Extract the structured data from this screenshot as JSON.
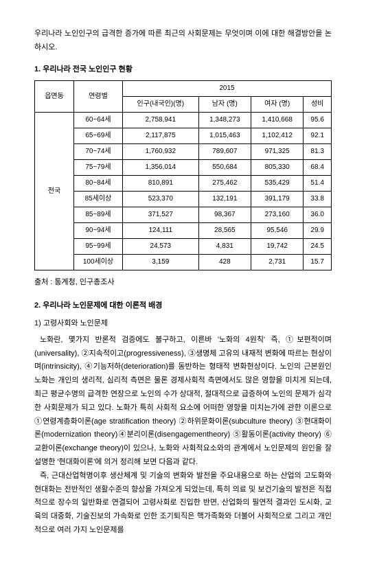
{
  "intro": "우리나라 노인인구의 급격한 증가에 따른 최근의 사회문제는 무엇이며 이에 대한 해결방안을 논하시오.",
  "section1_title": "1. 우리나라 전국 노인인구 현황",
  "table": {
    "header_region": "읍면동",
    "header_age": "연령별",
    "header_year": "2015",
    "header_pop": "인구(내국인)(명)",
    "header_male": "남자 (명)",
    "header_female": "여자 (명)",
    "header_ratio": "성비",
    "region": "전국",
    "rows": [
      {
        "age": "60~64세",
        "pop": "2,758,941",
        "male": "1,348,273",
        "female": "1,410,668",
        "ratio": "95.6"
      },
      {
        "age": "65~69세",
        "pop": "2,117,875",
        "male": "1,015,463",
        "female": "1,102,412",
        "ratio": "92.1"
      },
      {
        "age": "70~74세",
        "pop": "1,760,932",
        "male": "789,607",
        "female": "971,325",
        "ratio": "81.3"
      },
      {
        "age": "75~79세",
        "pop": "1,356,014",
        "male": "550,684",
        "female": "805,330",
        "ratio": "68.4"
      },
      {
        "age": "80~84세",
        "pop": "810,891",
        "male": "275,462",
        "female": "535,429",
        "ratio": "51.4"
      },
      {
        "age": "85세이상",
        "pop": "523,370",
        "male": "132,191",
        "female": "391,179",
        "ratio": "33.8"
      },
      {
        "age": "85~89세",
        "pop": "371,527",
        "male": "98,367",
        "female": "273,160",
        "ratio": "36.0"
      },
      {
        "age": "90~94세",
        "pop": "124,111",
        "male": "28,565",
        "female": "95,546",
        "ratio": "29.9"
      },
      {
        "age": "95~99세",
        "pop": "24,573",
        "male": "4,831",
        "female": "19,742",
        "ratio": "24.5"
      },
      {
        "age": "100세이상",
        "pop": "3,159",
        "male": "428",
        "female": "2,731",
        "ratio": "15.7"
      }
    ]
  },
  "source": "출처 : 통계청, 인구총조사",
  "section2_title": "2. 우리나라 노인문제에 대한 이론적 배경",
  "sub2_1": "1) 고령사회와 노인문제",
  "para1": "노화란, 몇가지 반론적 검증에도 불구하고, 이른바 '노화의 4원칙' 즉, ①보편적이며(universality), ②지속적이고(progressiveness), ③생명체 고유의 내재적 변화에 따르는 현상이며(intrinsicity), ④기능저하(deterioration)를 동반하는 형태적 변화현상이다. 노인의 근본원인 노화는 개인의 생리적, 심리적 측면은 물론 경제사회적 측면에서도 많은 영향을 미치게 되는데, 최근 평균수명의 급격한 연장으로 노인의 수가 상대적, 절대적으로 급증하여 노인의 문제가 심각한 사회문제가 되고 있다. 노화가 특히 사회적 요소에 어떠한 영향을 미치는가에 관한 이론으로 ①연령계층화이론(age stratification theory) ②하위문화이론(subculture theory) ③현대화이론(modernization theory)④분리이론(disengagementheory) ⑤활동이론(activity theory) ⑥교환이론(exchange theory)이 있으나, 노화와 사회적요소와의 관계에서 노인문제의 원인을 잘 설명한 '현대화이론'에 의거 정리해 보면 다음과 같다.",
  "para2": "즉, 근대산업혁명이후 생산체계 및 기술의 변화와 발전을 주요내용으로 하는 산업의 고도화와 현대화는 전반적인 생활수준의 향상을 가져오게 되었는데, 특히 의료 및 보건기술의 발전은 직접적으로 장수의 일반화로 연결되어 고령사회로 진입한 반면, 산업화의 필연적 결과인 도시화, 교육의 대중화, 기술진보의 가속화로 인한 조기퇴직은 핵가족화와 더불어 사회적으로 그리고 개인적으로 여러 가지 노인문제를"
}
